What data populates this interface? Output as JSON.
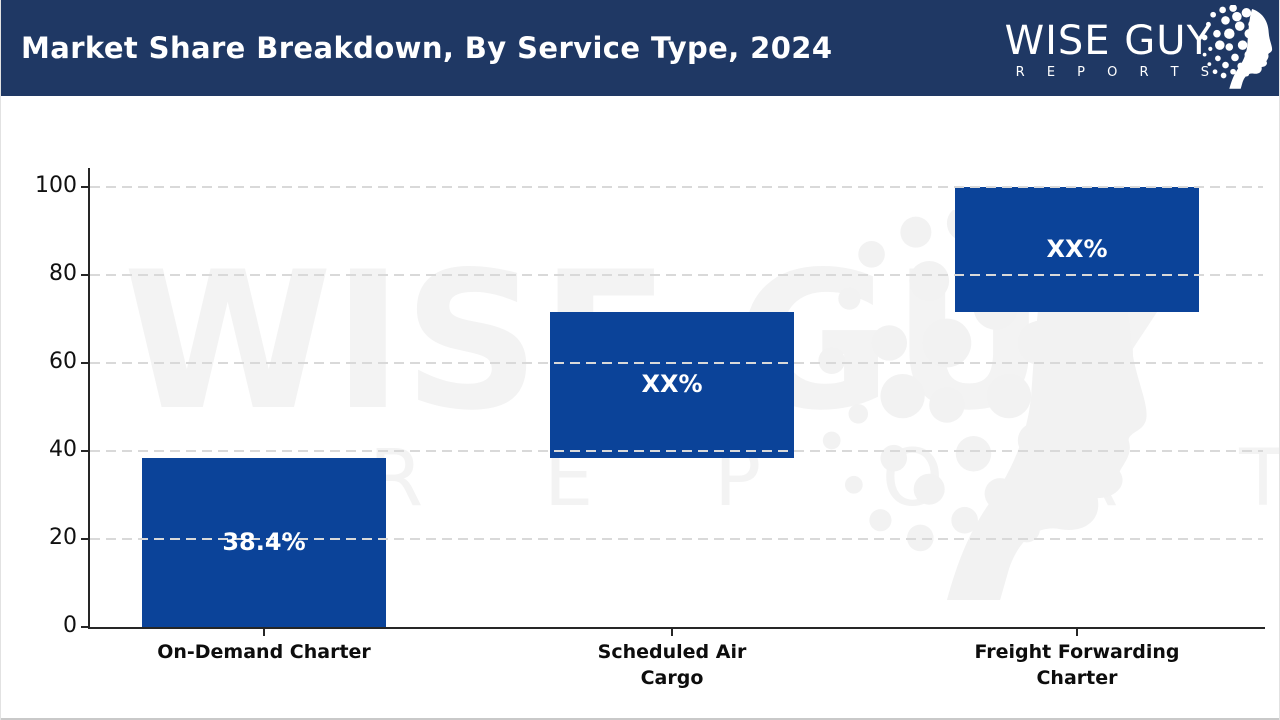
{
  "header": {
    "title": "Market Share Breakdown, By Service Type, 2024",
    "logo": {
      "name": "WISE GUY",
      "subname": "R E P O R T S"
    }
  },
  "watermark": {
    "name": "WISE GUY",
    "subname": "R E P O R T S"
  },
  "chart_data": {
    "type": "bar",
    "subtype": "floating-segment-waterfall",
    "title": "Market Share Breakdown, By Service Type, 2024",
    "categories": [
      "On-Demand Charter",
      "Scheduled Air\nCargo",
      "Freight Forwarding\nCharter"
    ],
    "segments": [
      {
        "category": "On-Demand Charter",
        "start": 0,
        "end": 38.4,
        "label": "38.4%"
      },
      {
        "category": "Scheduled Air Cargo",
        "start": 38.4,
        "end": 71.5,
        "label": "XX%"
      },
      {
        "category": "Freight Forwarding Charter",
        "start": 71.5,
        "end": 100,
        "label": "XX%"
      }
    ],
    "ylim": [
      0,
      100
    ],
    "yticks": [
      0,
      20,
      40,
      60,
      80,
      100
    ],
    "xlabel": "",
    "ylabel": "",
    "grid": "horizontal-dashed",
    "grid_above_bars": true,
    "legend": "none",
    "bar_color": "#0b4399",
    "bar_label_color": "#ffffff"
  },
  "colors": {
    "header_bg": "#1f3864",
    "bar": "#0b4399",
    "grid": "#d9d9d9",
    "axis": "#262626",
    "watermark": "#f3f3f3"
  }
}
